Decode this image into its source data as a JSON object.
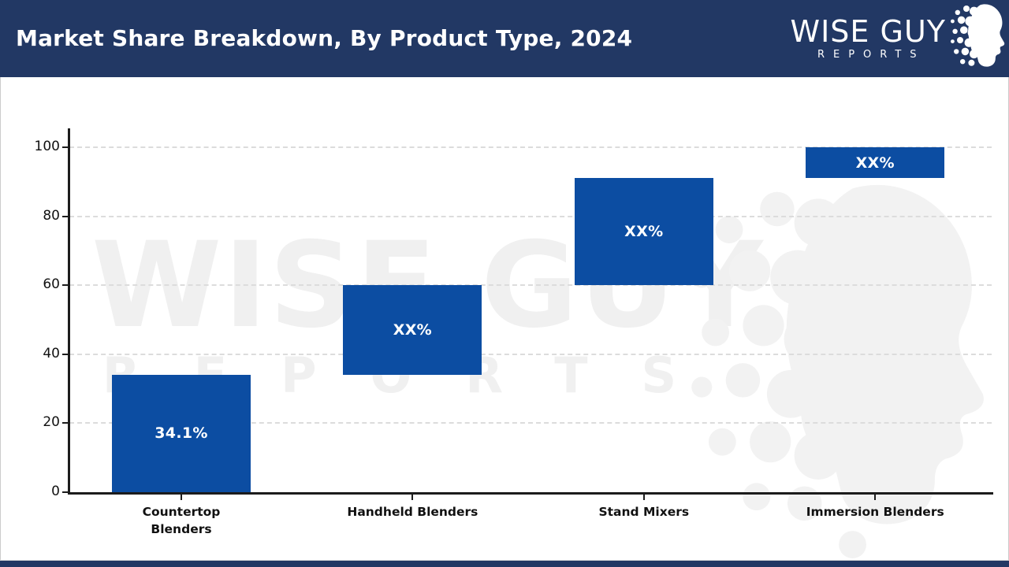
{
  "header": {
    "title": "Market Share Breakdown, By Product Type, 2024",
    "logo": {
      "brand_top": "WISE GUY",
      "brand_bottom": "REPORTS",
      "head_icon": "dotted-head-profile"
    }
  },
  "watermark": {
    "line1": "WISE GUY",
    "line2": "REPORTS"
  },
  "colors": {
    "header_bg": "#223864",
    "footer_bg": "#223864",
    "bar": "#0C4DA2",
    "bar_label": "#FFFFFF",
    "axis": "#1C1C1C",
    "grid": "#DCDCDC",
    "tick_label": "#111111",
    "watermark_text": "#F0F0F0",
    "watermark_head": "#F2F2F2",
    "page_bg": "#FFFFFF"
  },
  "chart_data": {
    "type": "bar",
    "subtype": "waterfall",
    "title": "Market Share Breakdown, By Product Type, 2024",
    "categories": [
      "Countertop\nBlenders",
      "Handheld Blenders",
      "Stand Mixers",
      "Immersion Blenders"
    ],
    "series": [
      {
        "name": "Market Share (%)",
        "segments": [
          {
            "category": "Countertop Blenders",
            "start": 0,
            "end": 34.1,
            "label": "34.1%"
          },
          {
            "category": "Handheld Blenders",
            "start": 34.1,
            "end": 60,
            "label": "XX%"
          },
          {
            "category": "Stand Mixers",
            "start": 60,
            "end": 91,
            "label": "XX%"
          },
          {
            "category": "Immersion Blenders",
            "start": 91,
            "end": 100,
            "label": "XX%"
          }
        ]
      }
    ],
    "xlabel": "",
    "ylabel": "",
    "ylim": [
      0,
      100
    ],
    "yticks": [
      0,
      20,
      40,
      60,
      80,
      100
    ],
    "grid": "horizontal-dashed",
    "legend": "none"
  }
}
